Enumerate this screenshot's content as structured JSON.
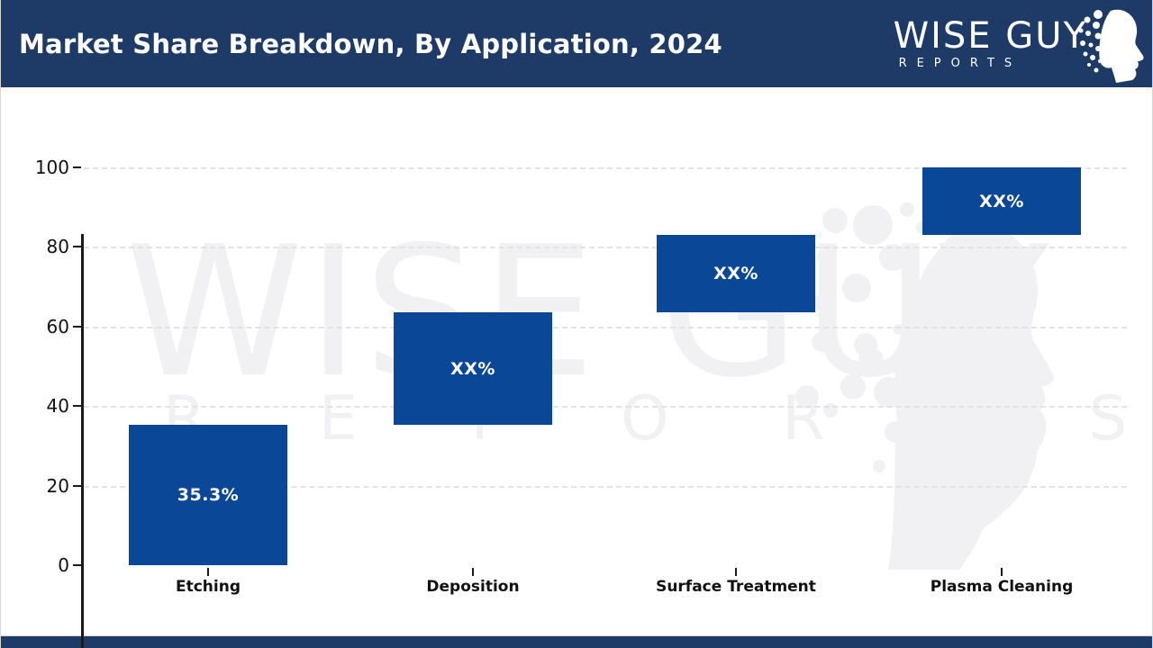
{
  "header": {
    "title": "Market Share Breakdown, By Application, 2024",
    "logo_line1": "WISE GUY",
    "logo_line2": "REPORTS",
    "bg_color": "#1e3a67"
  },
  "watermark": {
    "line1": "WISE GUY",
    "line2": "R E P O R T S"
  },
  "chart_data": {
    "type": "bar",
    "subtype": "waterfall-floating-bars",
    "title": "Market Share Breakdown, By Application, 2024",
    "categories": [
      "Etching",
      "Deposition",
      "Surface Treatment",
      "Plasma Cleaning"
    ],
    "series": [
      {
        "name": "Market Share %",
        "starts": [
          0,
          35.3,
          63.5,
          83
        ],
        "ends": [
          35.3,
          63.5,
          83,
          100
        ]
      }
    ],
    "bar_labels": [
      "35.3%",
      "XX%",
      "XX%",
      "XX%"
    ],
    "yticks": [
      0,
      20,
      40,
      60,
      80,
      100
    ],
    "ylim": [
      0,
      105
    ],
    "xlabel": "",
    "ylabel": "",
    "grid": "horizontal-dashed",
    "legend": "none",
    "bar_color": "#0a4796",
    "label_color": "#ffffff",
    "axis_color": "#1a1a1a"
  }
}
